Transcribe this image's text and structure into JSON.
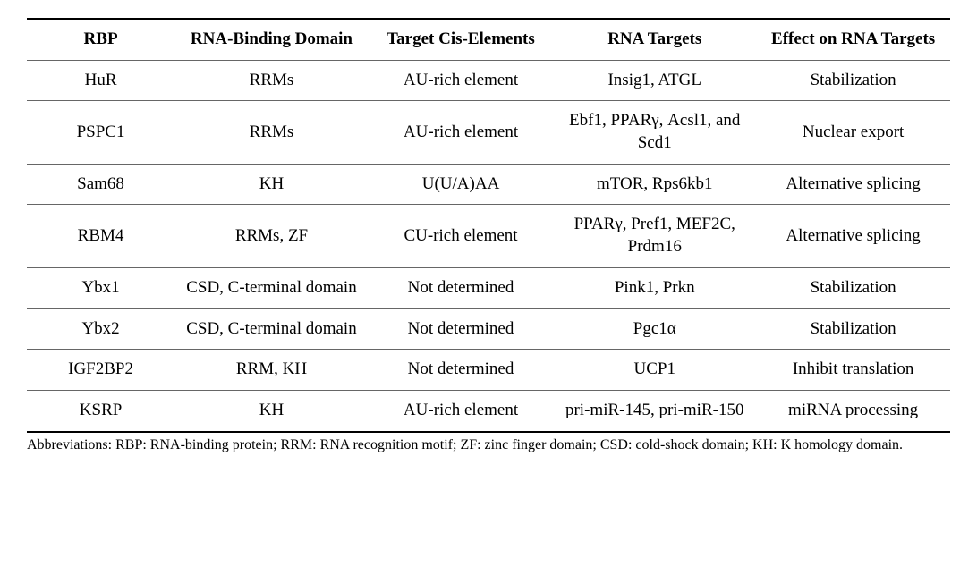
{
  "headers": {
    "rbp": "RBP",
    "domain": "RNA-Binding Domain",
    "cis": "Target Cis-Elements",
    "targets": "RNA Targets",
    "effect": "Effect on RNA Targets"
  },
  "rows": [
    {
      "rbp": "HuR",
      "domain": "RRMs",
      "cis": "AU-rich element",
      "targets": "Insig1, ATGL",
      "effect": "Stabilization"
    },
    {
      "rbp": "PSPC1",
      "domain": "RRMs",
      "cis": "AU-rich element",
      "targets": "Ebf1, PPARγ, Acsl1, and Scd1",
      "effect": "Nuclear export"
    },
    {
      "rbp": "Sam68",
      "domain": "KH",
      "cis": "U(U/A)AA",
      "targets": "mTOR, Rps6kb1",
      "effect": "Alternative splicing"
    },
    {
      "rbp": "RBM4",
      "domain": "RRMs, ZF",
      "cis": "CU-rich element",
      "targets": "PPARγ, Pref1, MEF2C, Prdm16",
      "effect": "Alternative splicing"
    },
    {
      "rbp": "Ybx1",
      "domain": "CSD, C-terminal domain",
      "cis": "Not determined",
      "targets": "Pink1, Prkn",
      "effect": "Stabilization"
    },
    {
      "rbp": "Ybx2",
      "domain": "CSD, C-terminal domain",
      "cis": "Not determined",
      "targets": "Pgc1α",
      "effect": "Stabilization"
    },
    {
      "rbp": "IGF2BP2",
      "domain": "RRM, KH",
      "cis": "Not determined",
      "targets": "UCP1",
      "effect": "Inhibit translation"
    },
    {
      "rbp": "KSRP",
      "domain": "KH",
      "cis": "AU-rich element",
      "targets": "pri-miR-145, pri-miR-150",
      "effect": "miRNA processing"
    }
  ],
  "footnote": "Abbreviations: RBP: RNA-binding protein; RRM: RNA recognition motif; ZF: zinc finger domain; CSD: cold-shock domain; KH: K homology domain."
}
